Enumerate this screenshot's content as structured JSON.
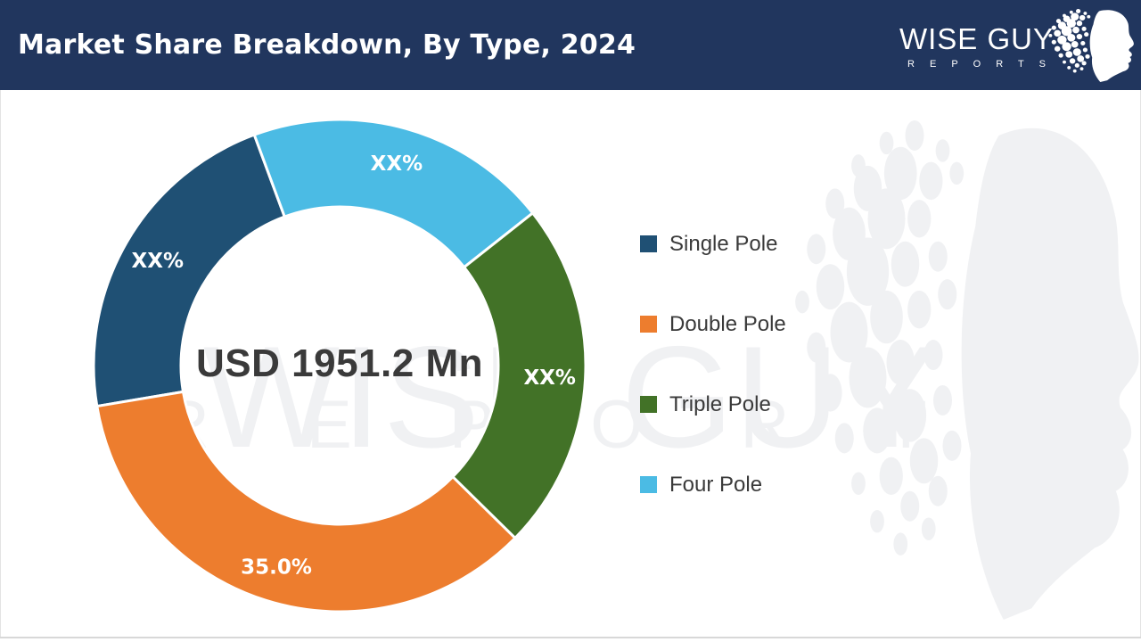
{
  "page": {
    "background_color": "#ffffff"
  },
  "header": {
    "background_color": "#21365E",
    "title": "Market Share Breakdown, By Type, 2024",
    "logo": {
      "wordmark": "WISE GUY",
      "subtext": "R E P O R T S"
    }
  },
  "watermark": {
    "wordmark": "WISE GUY",
    "subtext": "R E P O R T S"
  },
  "chart_data": {
    "type": "pie",
    "subtype": "donut",
    "title": "Market Share Breakdown, By Type, 2024",
    "center_label": "USD 1951.2 Mn",
    "categories": [
      "Single Pole",
      "Double Pole",
      "Triple Pole",
      "Four Pole"
    ],
    "values": [
      22,
      35,
      23,
      20
    ],
    "value_unit": "percent-of-total (unlabeled slices estimated from arc angles)",
    "slice_labels": [
      "XX%",
      "35.0%",
      "XX%",
      "XX%"
    ],
    "colors": [
      "#1F5074",
      "#ED7D2E",
      "#427227",
      "#4BBBE4"
    ],
    "slice_label_color": "#ffffff",
    "start_angle_deg": 189.5,
    "clockwise_order": [
      "Single Pole",
      "Four Pole",
      "Triple Pole",
      "Double Pole"
    ],
    "legend_position": "right",
    "legend_text_color": "#3A3A3A"
  }
}
